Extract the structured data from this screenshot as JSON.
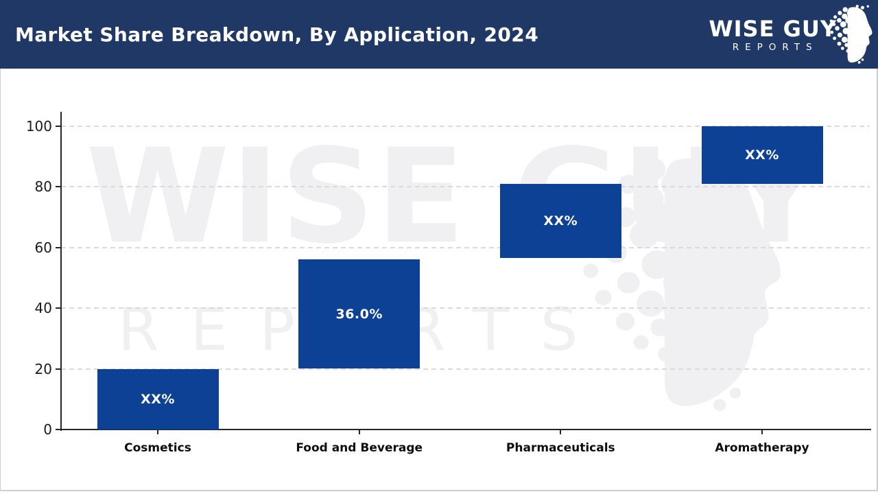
{
  "header": {
    "title": "Market Share Breakdown, By Application, 2024",
    "logo": {
      "line1": "WISE GUY",
      "line2": "REPORTS"
    }
  },
  "watermark": {
    "line1": "WISE GUY",
    "line2": "REPORTS"
  },
  "chart_data": {
    "type": "bar",
    "subtype": "waterfall",
    "title": "Market Share Breakdown, By Application, 2024",
    "categories": [
      "Cosmetics",
      "Food and Beverage",
      "Pharmaceuticals",
      "Aromatherapy"
    ],
    "segments": [
      {
        "category": "Cosmetics",
        "start": 0,
        "end": 20,
        "label": "XX%"
      },
      {
        "category": "Food and Beverage",
        "start": 20,
        "end": 56,
        "label": "36.0%",
        "value": 36.0
      },
      {
        "category": "Pharmaceuticals",
        "start": 56.5,
        "end": 81,
        "label": "XX%"
      },
      {
        "category": "Aromatherapy",
        "start": 81,
        "end": 100,
        "label": "XX%"
      }
    ],
    "yticks": [
      0,
      20,
      40,
      60,
      80,
      100
    ],
    "ylim": [
      0,
      105
    ],
    "xlabel": "",
    "ylabel": "",
    "grid": "horizontal-dashed",
    "legend": "none",
    "colors": {
      "bar": "#0c4195",
      "bar_label": "#ffffff",
      "axis": "#262626",
      "grid": "#dadada",
      "header_bg": "#1f3866",
      "watermark": "#f0f0f3"
    }
  }
}
